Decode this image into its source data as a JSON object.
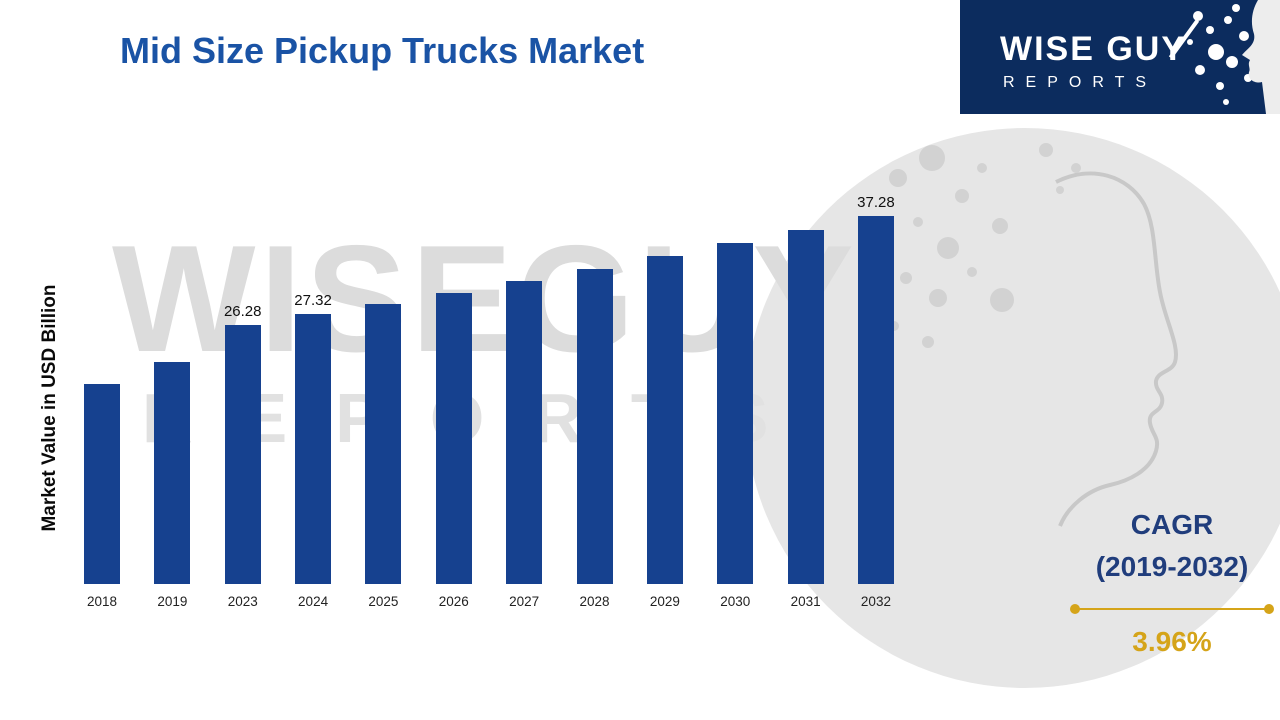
{
  "title": "Mid Size Pickup Trucks Market",
  "logo": {
    "line1": "WISE GUY",
    "line2": "REPORTS"
  },
  "watermark": {
    "line1": "WISEGUY",
    "line2": "REPORTS"
  },
  "cagr": {
    "label": "CAGR",
    "range": "(2019-2032)",
    "value": "3.96%"
  },
  "chart_data": {
    "type": "bar",
    "title": "Mid Size Pickup Trucks Market",
    "xlabel": "",
    "ylabel": "Market Value in USD Billion",
    "categories": [
      "2018",
      "2019",
      "2023",
      "2024",
      "2025",
      "2026",
      "2027",
      "2028",
      "2029",
      "2030",
      "2031",
      "2032"
    ],
    "values": [
      20.3,
      22.5,
      26.28,
      27.32,
      28.4,
      29.5,
      30.7,
      31.9,
      33.2,
      34.5,
      35.9,
      37.28
    ],
    "data_labels": [
      "",
      "",
      "26.28",
      "27.32",
      "",
      "",
      "",
      "",
      "",
      "",
      "",
      "37.28"
    ],
    "ylim": [
      0,
      40
    ],
    "grid": false,
    "legend": "none",
    "bar_color": "#16418f"
  },
  "colors": {
    "title_blue": "#1a53a5",
    "bar_blue": "#16418f",
    "logo_navy": "#0c2c5e",
    "cagr_navy": "#203d7c",
    "gold": "#d5a419",
    "watermark_gray": "#dcdcdc"
  }
}
